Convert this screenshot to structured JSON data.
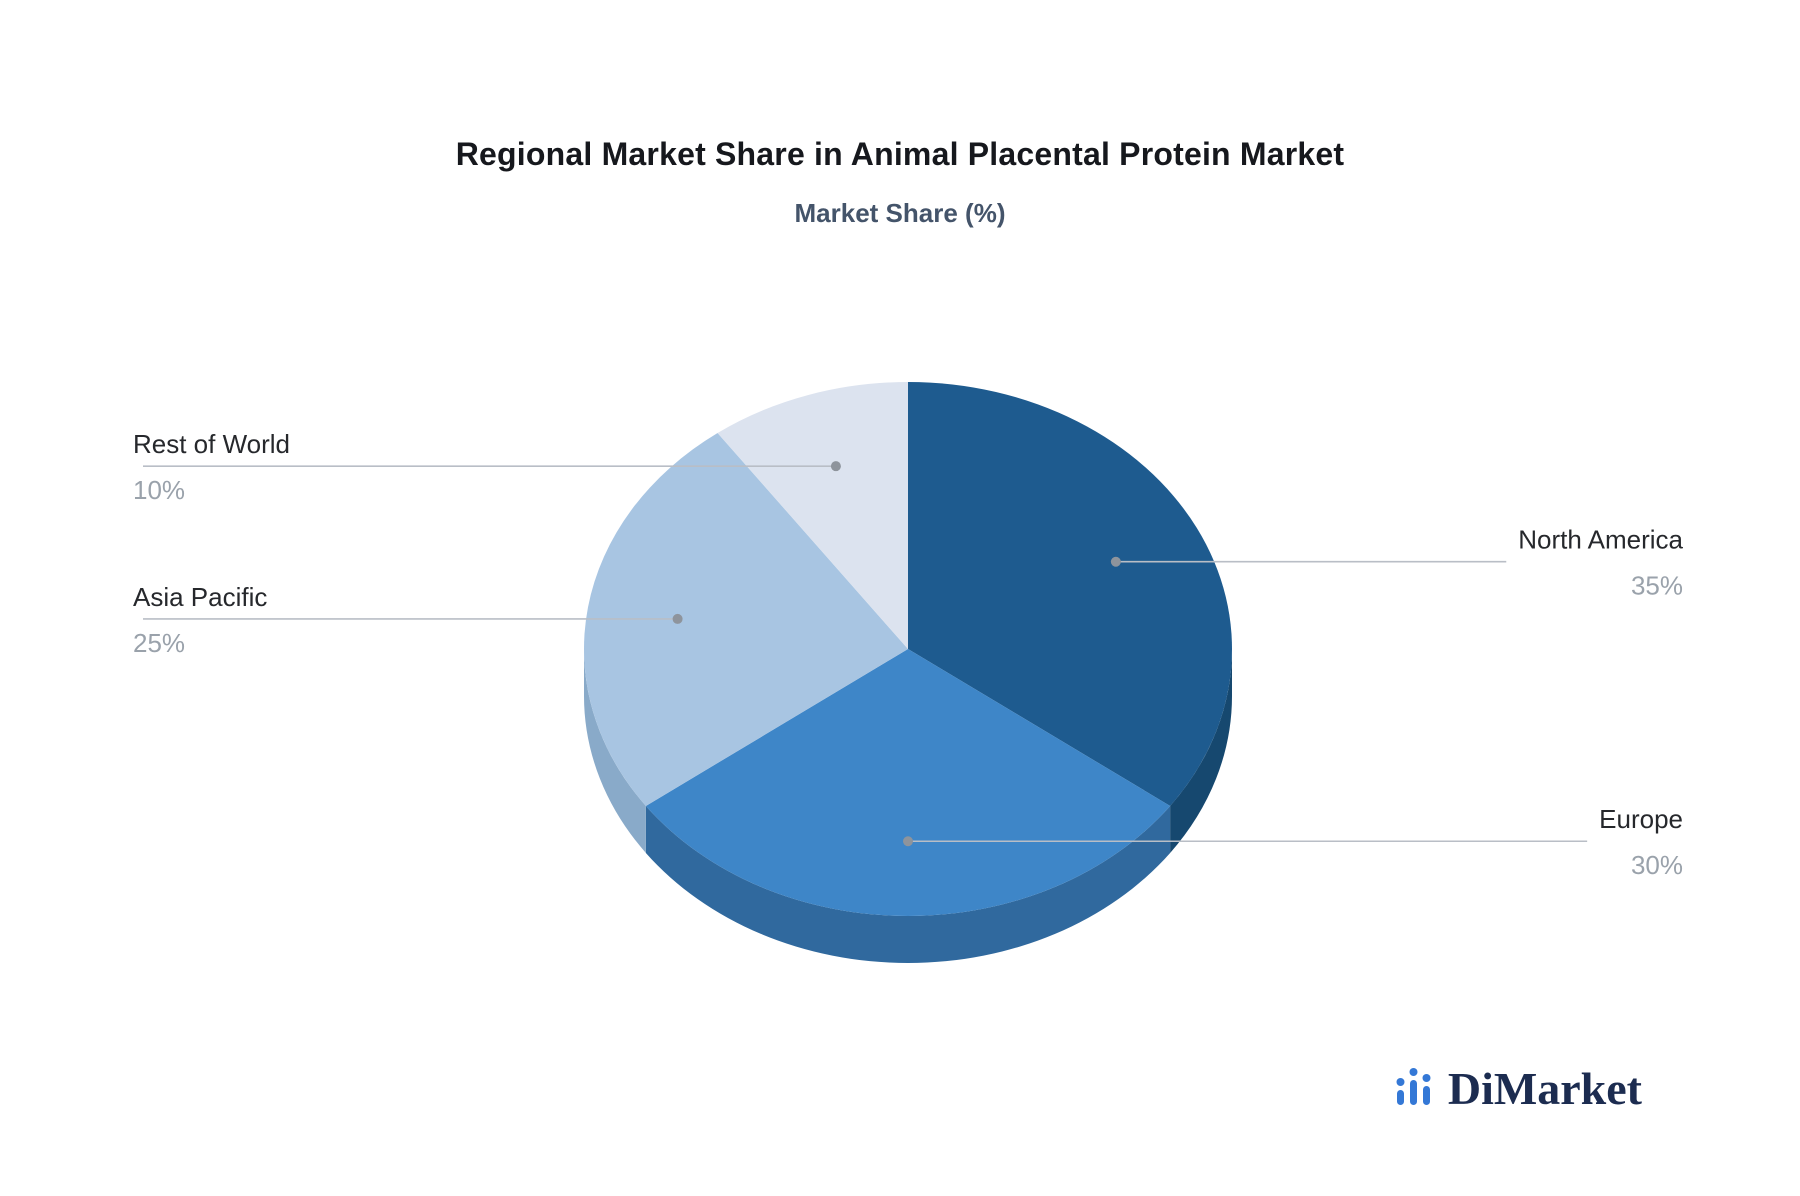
{
  "header": {
    "title": "Regional Market Share in Animal Placental Protein Market",
    "subtitle": "Market Share (%)"
  },
  "logo": {
    "text": "DiMarket",
    "icon": "bar-chart-icon"
  },
  "colors": {
    "background": "#ffffff",
    "title_text": "#16181d",
    "subtitle_text": "#44546a",
    "label_name": "#26282c",
    "label_value": "#9aa2ab",
    "leader_line": "#b9bec6",
    "leader_dot": "#8e949c",
    "logo_text": "#1c2c50",
    "logo_icon": "#3478d6"
  },
  "chart_data": {
    "type": "pie",
    "style": "3d",
    "title": "Regional Market Share in Animal Placental Protein Market",
    "subtitle": "Market Share (%)",
    "unit": "%",
    "start_angle": "top",
    "direction": "clockwise",
    "legend": "none",
    "labels": "leader-lines",
    "slices": [
      {
        "label": "North America",
        "value": 35,
        "display": "35%",
        "color": "#1e5b8f",
        "side_color": "#16486f"
      },
      {
        "label": "Europe",
        "value": 30,
        "display": "30%",
        "color": "#3e86c8",
        "side_color": "#30699e"
      },
      {
        "label": "Asia Pacific",
        "value": 25,
        "display": "25%",
        "color": "#a8c5e2",
        "side_color": "#89aac9"
      },
      {
        "label": "Rest of World",
        "value": 10,
        "display": "10%",
        "color": "#dce3ef",
        "side_color": "#c3ccda"
      }
    ]
  }
}
